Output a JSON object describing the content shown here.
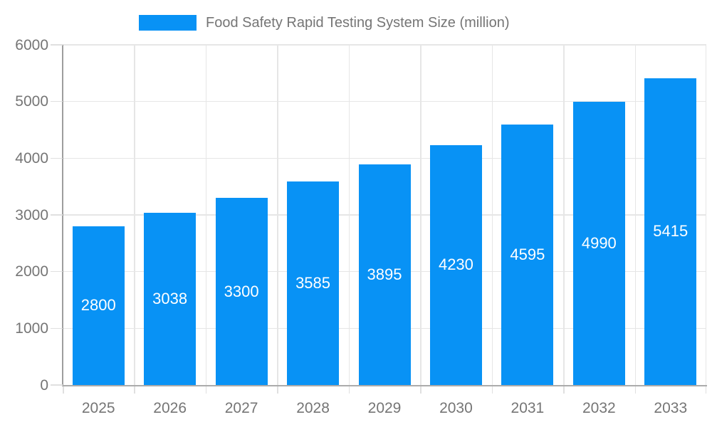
{
  "legend": {
    "label": "Food Safety Rapid Testing System Size (million)"
  },
  "colors": {
    "bar": "#0892f5",
    "value_label": "#ffffff",
    "axis_label": "#757575"
  },
  "chart_data": {
    "type": "bar",
    "title": "Food Safety Rapid Testing System Size (million)",
    "categories": [
      "2025",
      "2026",
      "2027",
      "2028",
      "2029",
      "2030",
      "2031",
      "2032",
      "2033"
    ],
    "values": [
      2800,
      3038,
      3300,
      3585,
      3895,
      4230,
      4595,
      4990,
      5415
    ],
    "xlabel": "",
    "ylabel": "",
    "ylim": [
      0,
      6000
    ],
    "yticks": [
      0,
      1000,
      2000,
      3000,
      4000,
      5000,
      6000
    ],
    "grid": true,
    "legend_position": "top",
    "value_labels": "inside-center"
  }
}
